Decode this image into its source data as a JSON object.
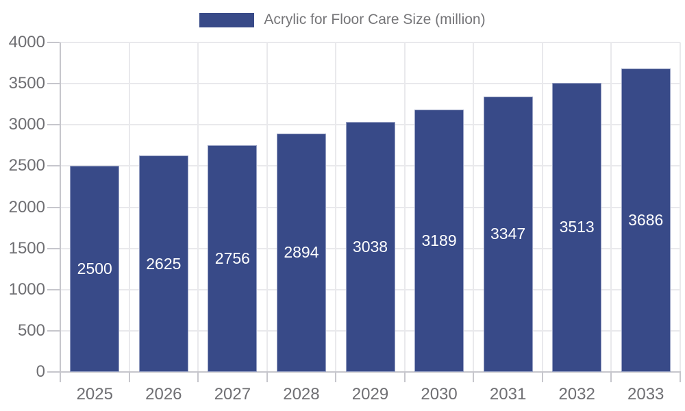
{
  "legend": {
    "label": "Acrylic for Floor Care Size (million)",
    "swatch_color": "#384A88"
  },
  "chart_data": {
    "type": "bar",
    "title": "Acrylic for Floor Care Size (million)",
    "categories": [
      "2025",
      "2026",
      "2027",
      "2028",
      "2029",
      "2030",
      "2031",
      "2032",
      "2033"
    ],
    "values": [
      2500,
      2625,
      2756,
      2894,
      3038,
      3189,
      3347,
      3513,
      3686
    ],
    "xlabel": "",
    "ylabel": "",
    "ylim": [
      0,
      4000
    ],
    "yticks": [
      0,
      500,
      1000,
      1500,
      2000,
      2500,
      3000,
      3500,
      4000
    ],
    "grid": true,
    "legend_position": "top-center",
    "bar_color": "#384A88",
    "bar_border_color": "#99A2C4",
    "bar_label_color": "#FFFFFF",
    "axis_text_color": "#6F6F73",
    "grid_color": "#E9E9EC",
    "axis_line_color": "#C6C6CC"
  }
}
